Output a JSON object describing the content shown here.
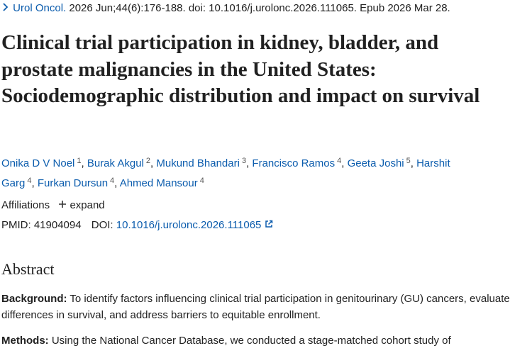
{
  "citation": {
    "journal": "Urol Oncol.",
    "details": "2026 Jun;44(6):176-188. doi: 10.1016/j.urolonc.2026.111065. Epub 2026 Mar 28."
  },
  "title": "Clinical trial participation in kidney, bladder, and prostate malignancies in the United States: Sociodemographic distribution and impact on survival",
  "author_separator": ",",
  "authors": [
    {
      "name": "Onika D V Noel",
      "affiliation": "1"
    },
    {
      "name": "Burak Akgul",
      "affiliation": "2"
    },
    {
      "name": "Mukund Bhandari",
      "affiliation": "3"
    },
    {
      "name": "Francisco Ramos",
      "affiliation": "4"
    },
    {
      "name": "Geeta Joshi",
      "affiliation": "5"
    },
    {
      "name": "Harshit Garg",
      "affiliation": "4"
    },
    {
      "name": "Furkan Dursun",
      "affiliation": "4"
    },
    {
      "name": "Ahmed Mansour",
      "affiliation": "4"
    }
  ],
  "affiliations": {
    "label": "Affiliations",
    "toggle": "expand"
  },
  "identifiers": {
    "pmid_label": "PMID:",
    "pmid": "41904094",
    "doi_label": "DOI:",
    "doi": "10.1016/j.urolonc.2026.111065"
  },
  "abstract": {
    "heading": "Abstract",
    "sections": [
      {
        "label": "Background:",
        "text": "To identify factors influencing clinical trial participation in genitourinary (GU) cancers, evaluate differences in survival, and address barriers to equitable enrollment."
      },
      {
        "label": "Methods:",
        "text": "Using the National Cancer Database, we conducted a stage-matched cohort study of"
      }
    ]
  }
}
